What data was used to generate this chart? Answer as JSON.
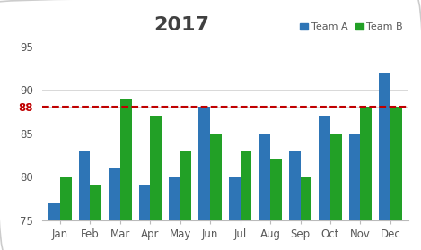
{
  "title": "2017",
  "title_fontsize": 16,
  "title_color": "#404040",
  "categories": [
    "Jan",
    "Feb",
    "Mar",
    "Apr",
    "May",
    "Jun",
    "Jul",
    "Aug",
    "Sep",
    "Oct",
    "Nov",
    "Dec"
  ],
  "team_a": [
    77,
    83,
    81,
    79,
    80,
    88,
    80,
    85,
    83,
    87,
    85,
    92
  ],
  "team_b": [
    80,
    79,
    89,
    87,
    83,
    85,
    83,
    82,
    80,
    85,
    88,
    88
  ],
  "color_a": "#2E75B6",
  "color_b": "#22A026",
  "hline_y": 88,
  "hline_color": "#C00000",
  "hline_label": "88",
  "ylim_min": 75,
  "ylim_max": 96,
  "yticks": [
    75,
    80,
    85,
    90,
    95
  ],
  "ytick_labels": [
    "75",
    "80",
    "85",
    "90",
    "95"
  ],
  "legend_team_a": "Team A",
  "legend_team_b": "Team B",
  "bg_color": "#FFFFFF",
  "plot_bg_color": "#FFFFFF",
  "grid_color": "#D8D8D8",
  "bar_width": 0.38,
  "tick_label_fontsize": 8.5,
  "axis_label_color": "#595959"
}
